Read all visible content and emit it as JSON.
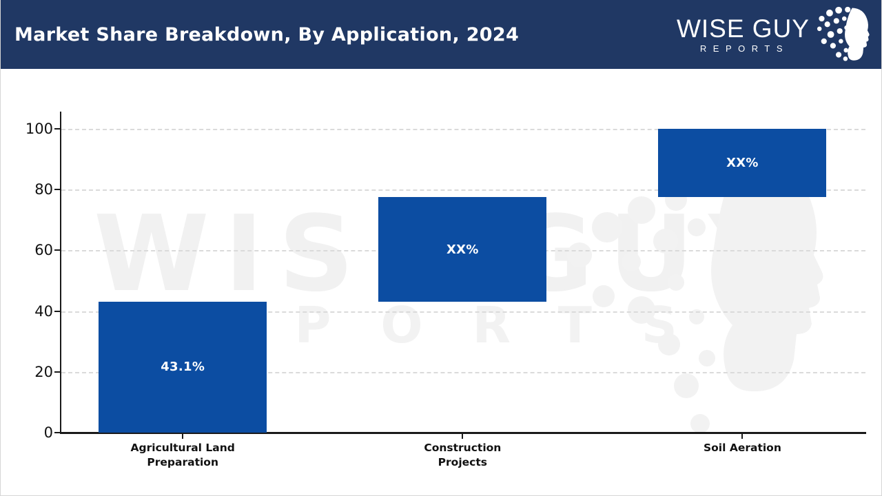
{
  "header": {
    "title": "Market Share Breakdown, By Application, 2024",
    "logo": {
      "line1": "WISE GUY",
      "line2": "REPORTS"
    }
  },
  "watermark": {
    "line1": "WISE GUY",
    "line2": "REPORTS"
  },
  "colors": {
    "header_background": "#203864",
    "bar_fill": "#0c4da2",
    "bar_label_text": "#ffffff",
    "axis": "#1a1a1a",
    "gridline": "#dadada",
    "watermark": "#f1f1f1",
    "title_text": "#ffffff"
  },
  "chart_data": {
    "type": "bar",
    "subtype": "stacked_cumulative_waterfall",
    "title": "Market Share Breakdown, By Application, 2024",
    "categories": [
      "Agricultural Land Preparation",
      "Construction Projects",
      "Soil Aeration"
    ],
    "category_display_lines": [
      [
        "Agricultural Land",
        "Preparation"
      ],
      [
        "Construction",
        "Projects"
      ],
      [
        "Soil Aeration"
      ]
    ],
    "segments": [
      {
        "category": "Agricultural Land Preparation",
        "start": 0,
        "end": 43.1,
        "value": 43.1,
        "value_label": "43.1%"
      },
      {
        "category": "Construction Projects",
        "start": 43.1,
        "end": 77.5,
        "value": 34.4,
        "value_label": "XX%"
      },
      {
        "category": "Soil Aeration",
        "start": 77.5,
        "end": 100,
        "value": 22.5,
        "value_label": "XX%"
      }
    ],
    "xlabel": "",
    "ylabel": "",
    "ylim": [
      0,
      100
    ],
    "yticks": [
      0,
      20,
      40,
      60,
      80,
      100
    ],
    "grid": "horizontal-dashed",
    "legend": "none",
    "bar_color": "#0c4da2",
    "bar_label_color": "#ffffff"
  }
}
